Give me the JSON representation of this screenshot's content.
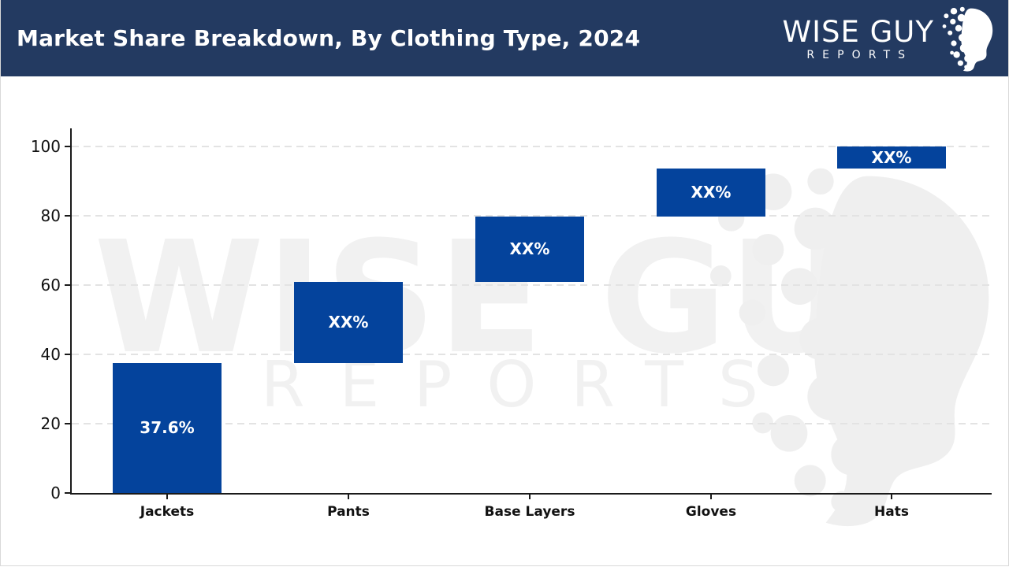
{
  "header": {
    "title": "Market Share Breakdown, By Clothing Type, 2024",
    "logo": {
      "line1": "WISE GUY",
      "line2": "REPORTS"
    }
  },
  "watermark": {
    "line1": "WISE GUY",
    "line2": "REPORTS"
  },
  "chart_data": {
    "type": "bar",
    "subtype": "waterfall",
    "title": "Market Share Breakdown, By Clothing Type, 2024",
    "categories": [
      "Jackets",
      "Pants",
      "Base Layers",
      "Gloves",
      "Hats"
    ],
    "segments": [
      {
        "category": "Jackets",
        "start": 0,
        "end": 37.6,
        "label": "37.6%"
      },
      {
        "category": "Pants",
        "start": 37.6,
        "end": 61.0,
        "label": "XX%"
      },
      {
        "category": "Base Layers",
        "start": 61.0,
        "end": 79.8,
        "label": "XX%"
      },
      {
        "category": "Gloves",
        "start": 79.8,
        "end": 93.7,
        "label": "XX%"
      },
      {
        "category": "Hats",
        "start": 93.7,
        "end": 100,
        "label": "XX%"
      }
    ],
    "y_ticks": [
      0,
      20,
      40,
      60,
      80,
      100
    ],
    "ylim": [
      0,
      105
    ],
    "xlabel": "",
    "ylabel": "",
    "legend": "none",
    "grid": "horizontal-dashed",
    "bar_color": "#04439C",
    "bar_label_color": "#FFFFFF"
  },
  "colors": {
    "header_bg": "#233A61",
    "bar": "#04439C",
    "axis": "#1A1A1A",
    "gridline": "#E3E3E3",
    "watermark": "#F1F1F1"
  }
}
